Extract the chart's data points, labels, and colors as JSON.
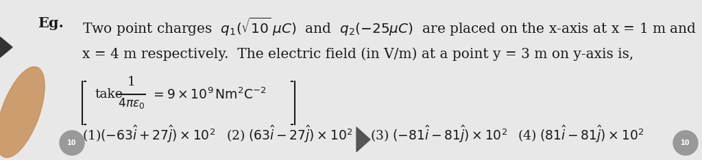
{
  "bg_color": "#e8e8e8",
  "text_color": "#1a1a1a",
  "eg_label": "Eg.",
  "line1": "Two point charges  $q_1(\\sqrt{10}\\,\\mu C)$  and  $q_2(-25\\mu C)$  are placed on the x-axis at x = 1 m and",
  "line2": "x = 4 m respectively.  The electric field (in V/m) at a point y = 3 m on y-axis is,",
  "bracket_text": "take",
  "bracket_fraction": "$\\dfrac{1}{4\\pi\\varepsilon_0}$",
  "bracket_eq": "$= 9\\times10^9\\,\\mathrm{Nm^2C^{-2}}$",
  "opt1": "(1)$(-63\\hat{i}+27\\hat{j})\\times10^2$",
  "opt2": "(2) $(63\\hat{i}-27\\hat{j})\\times10^2$",
  "opt3": "(3) $(-81\\hat{i}-81\\hat{j})\\times10^2$",
  "opt4": "(4) $(81\\hat{i}-81\\hat{j})\\times10^2$",
  "font_size_main": 14.5,
  "font_size_eg": 15,
  "font_size_bracket": 13.5,
  "font_size_options": 13.5,
  "circle_color": "#aaaaaa",
  "circle_text_color": "#ffffff",
  "hand_color": "#c8905a",
  "play_color": "#555555"
}
